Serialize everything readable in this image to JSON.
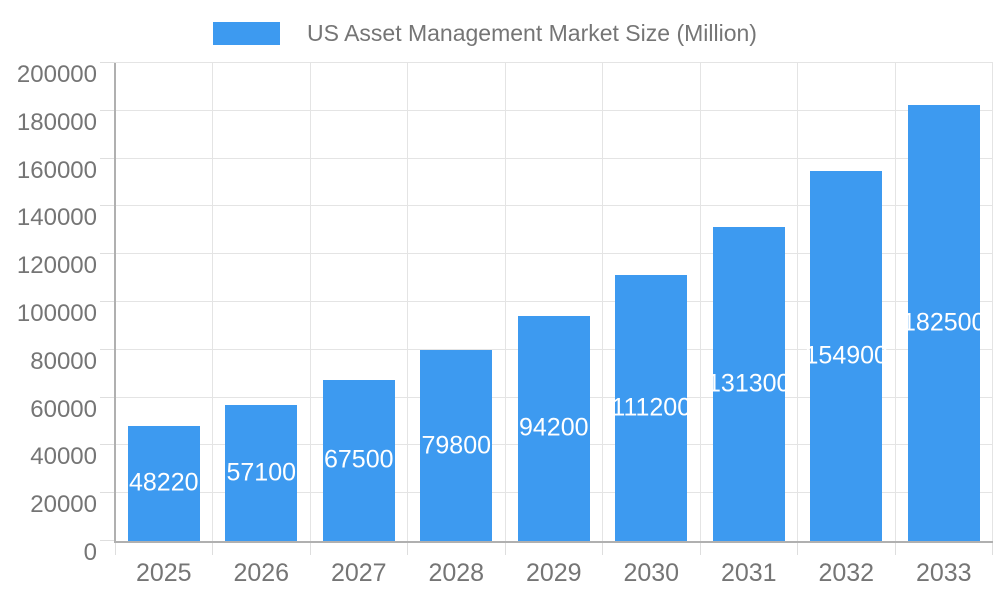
{
  "chart_data": {
    "type": "bar",
    "title": "US Asset Management Market Size (Million)",
    "categories": [
      "2025",
      "2026",
      "2027",
      "2028",
      "2029",
      "2030",
      "2031",
      "2032",
      "2033"
    ],
    "values": [
      48220,
      57100,
      67500,
      79800,
      94200,
      111200,
      131300,
      154900,
      182500
    ],
    "xlabel": "",
    "ylabel": "",
    "ylim": [
      0,
      200000
    ],
    "yticks": [
      0,
      20000,
      40000,
      60000,
      80000,
      100000,
      120000,
      140000,
      160000,
      180000,
      200000
    ],
    "grid": true,
    "legend_position": "top",
    "value_labels": "inside-center",
    "colors": {
      "bar": "#3D9AF0",
      "value_label": "#FFFFFF",
      "axis_text": "#757575",
      "legend_text": "#757575",
      "gridline": "#E4E4E4",
      "tick": "#DEDEDE",
      "axis_line": "#B0B0B0",
      "background": "#FFFFFF"
    }
  },
  "legend": {
    "label": "US Asset Management Market Size (Million)"
  }
}
